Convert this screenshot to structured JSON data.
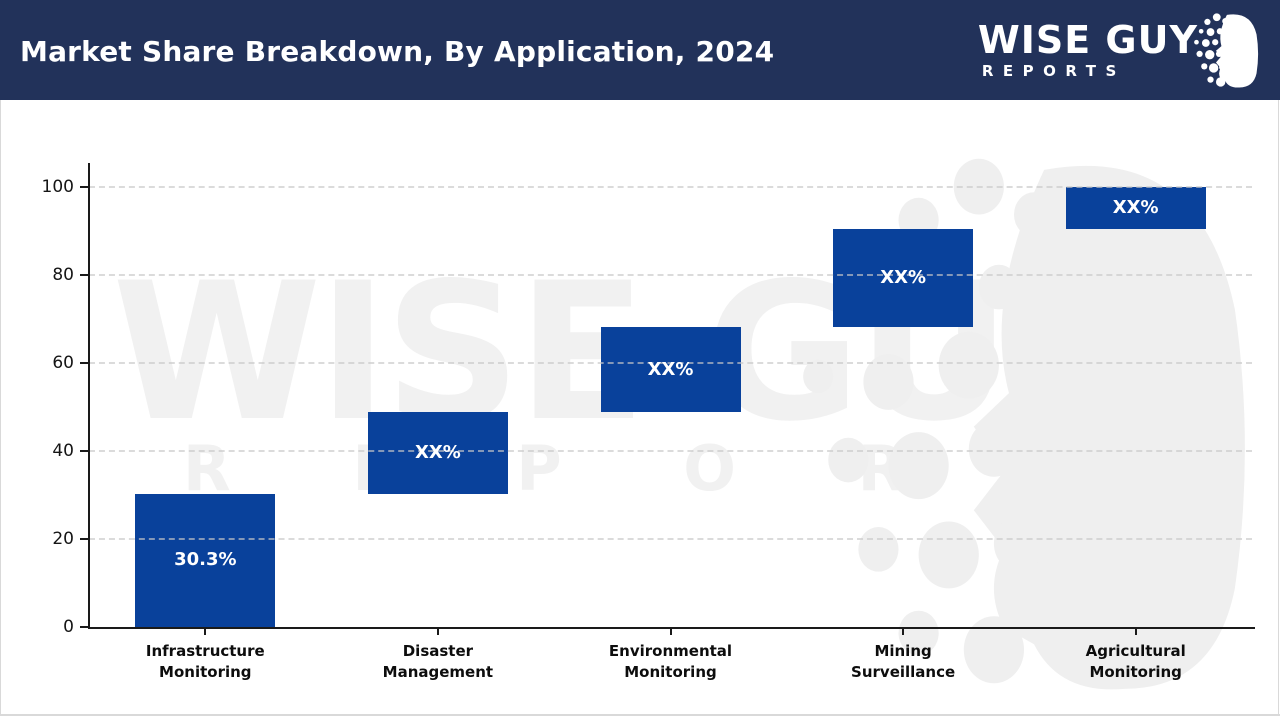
{
  "header": {
    "title": "Market Share Breakdown, By Application, 2024",
    "logo": {
      "brand": "WISE GUY",
      "sub": "REPORTS"
    }
  },
  "watermark": {
    "line1": "WISE GUY",
    "line2": "R E P O R T S"
  },
  "chart_data": {
    "type": "bar",
    "subtype": "waterfall",
    "title": "Market Share Breakdown, By Application, 2024",
    "xlabel": "",
    "ylabel": "",
    "ylim": [
      0,
      105
    ],
    "yticks": [
      0,
      20,
      40,
      60,
      80,
      100
    ],
    "grid": true,
    "grid_style": "dashed",
    "legend": false,
    "categories": [
      "Infrastructure Monitoring",
      "Disaster Management",
      "Environmental Monitoring",
      "Mining Surveillance",
      "Agricultural Monitoring"
    ],
    "category_lines": [
      [
        "Infrastructure",
        "Monitoring"
      ],
      [
        "Disaster",
        "Management"
      ],
      [
        "Environmental",
        "Monitoring"
      ],
      [
        "Mining",
        "Surveillance"
      ],
      [
        "Agricultural",
        "Monitoring"
      ]
    ],
    "segments": [
      {
        "category": "Infrastructure Monitoring",
        "start": 0,
        "end": 30.3,
        "label": "30.3%"
      },
      {
        "category": "Disaster Management",
        "start": 30.3,
        "end": 48.9,
        "label": "XX%"
      },
      {
        "category": "Environmental Monitoring",
        "start": 48.9,
        "end": 68.1,
        "label": "XX%"
      },
      {
        "category": "Mining Surveillance",
        "start": 68.1,
        "end": 90.5,
        "label": "XX%"
      },
      {
        "category": "Agricultural Monitoring",
        "start": 90.5,
        "end": 100,
        "label": "XX%"
      }
    ]
  },
  "colors": {
    "header_bg": "#22325a",
    "bar": "#09419b",
    "bar_label": "#ffffff",
    "axis": "#1a1a1a",
    "watermark": "#f1f1f1",
    "watermark_face": "#efefef"
  }
}
